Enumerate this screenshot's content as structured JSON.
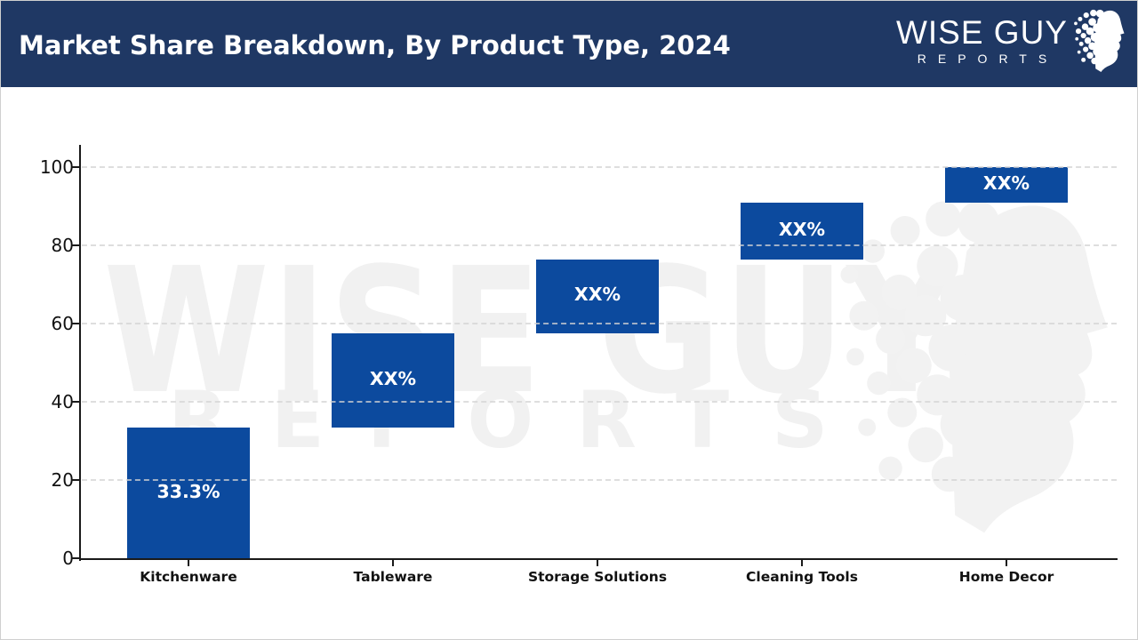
{
  "header": {
    "title": "Market Share Breakdown, By Product Type, 2024",
    "background_color": "#1f3864",
    "logo": {
      "line1": "WISE GUY",
      "line2": "REPORTS"
    }
  },
  "watermark": {
    "line1": "WISE GUY",
    "line2": "REPORTS"
  },
  "chart_data": {
    "type": "bar",
    "subtype": "waterfall",
    "title": "Market Share Breakdown, By Product Type, 2024",
    "categories": [
      "Kitchenware",
      "Tableware",
      "Storage Solutions",
      "Cleaning Tools",
      "Home Decor"
    ],
    "segments": [
      {
        "category": "Kitchenware",
        "start": 0,
        "end": 33.3,
        "label": "33.3%"
      },
      {
        "category": "Tableware",
        "start": 33.3,
        "end": 57.6,
        "label": "XX%"
      },
      {
        "category": "Storage Solutions",
        "start": 57.6,
        "end": 76.3,
        "label": "XX%"
      },
      {
        "category": "Cleaning Tools",
        "start": 76.3,
        "end": 91.0,
        "label": "XX%"
      },
      {
        "category": "Home Decor",
        "start": 91.0,
        "end": 100.0,
        "label": "XX%"
      }
    ],
    "xlabel": "",
    "ylabel": "",
    "ylim": [
      0,
      105
    ],
    "yticks": [
      0,
      20,
      40,
      60,
      80,
      100
    ],
    "grid": true,
    "grid_style": "dashed",
    "legend": "none",
    "bar_color": "#0c4a9e",
    "bar_label_color": "#ffffff",
    "axis_color": "#1a1a1a"
  }
}
